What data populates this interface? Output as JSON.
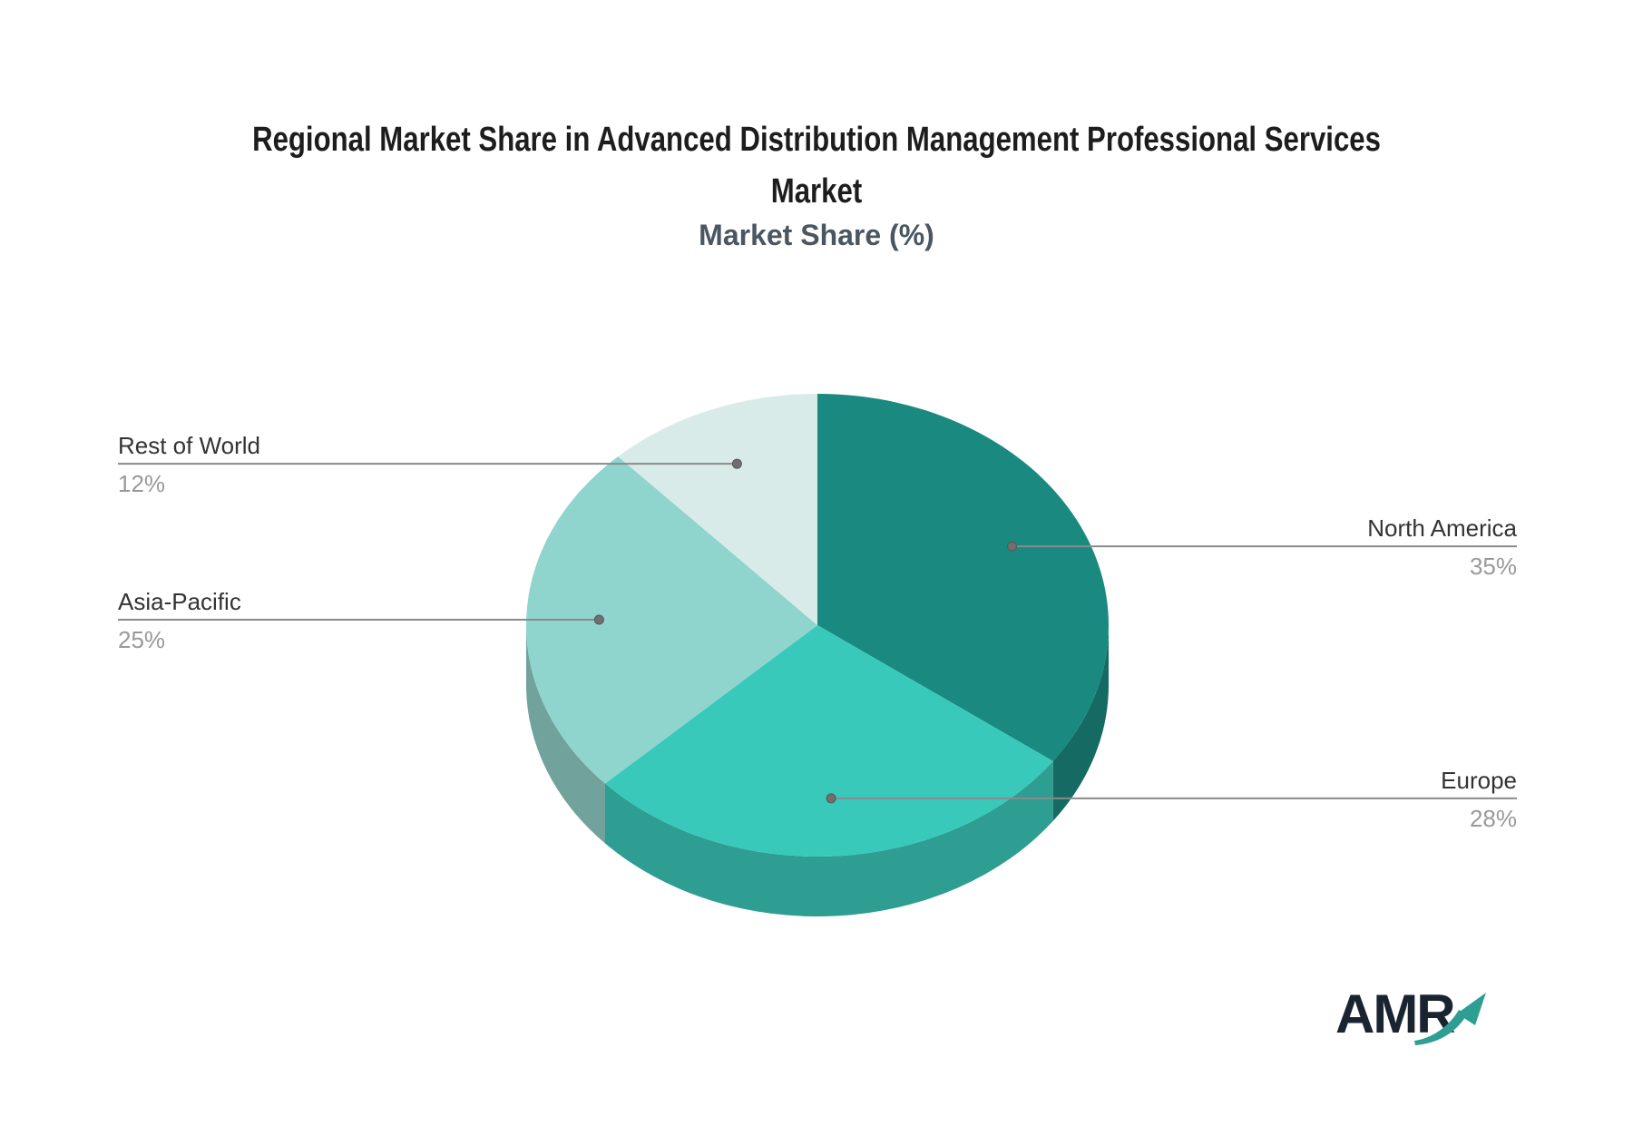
{
  "title": "Regional Market Share in Advanced Distribution Management Professional Services Market",
  "subtitle": "Market Share (%)",
  "chart_data": {
    "type": "pie",
    "three_d": true,
    "title": "Regional Market Share in Advanced Distribution Management Professional Services Market",
    "subtitle": "Market Share (%)",
    "unit": "%",
    "start_angle_deg": 0,
    "direction": "clockwise",
    "labels_outside": true,
    "legend": "none",
    "slices": [
      {
        "label": "North America",
        "value": 35,
        "pct": "35%",
        "color": "#1a8a80",
        "side_color": "#156b63",
        "label_side": "right"
      },
      {
        "label": "Europe",
        "value": 28,
        "pct": "28%",
        "color": "#39c9bb",
        "side_color": "#2e9d92",
        "label_side": "right"
      },
      {
        "label": "Asia-Pacific",
        "value": 25,
        "pct": "25%",
        "color": "#8fd5cd",
        "side_color": "#71a29b",
        "label_side": "left"
      },
      {
        "label": "Rest of World",
        "value": 12,
        "pct": "12%",
        "color": "#d9ebe8",
        "side_color": "#c4ded9",
        "label_side": "left"
      }
    ]
  },
  "logo": {
    "text": "AMR",
    "text_color": "#1a2430",
    "arrow_color": "#2f9e92"
  },
  "colors": {
    "background": "#ffffff",
    "title_text": "#1d1d1d",
    "subtitle_text": "#4a5661",
    "label_text": "#333333",
    "pct_text": "#999999",
    "leader_line": "#8a8a8a",
    "leader_dot": "#6f6f6f"
  }
}
